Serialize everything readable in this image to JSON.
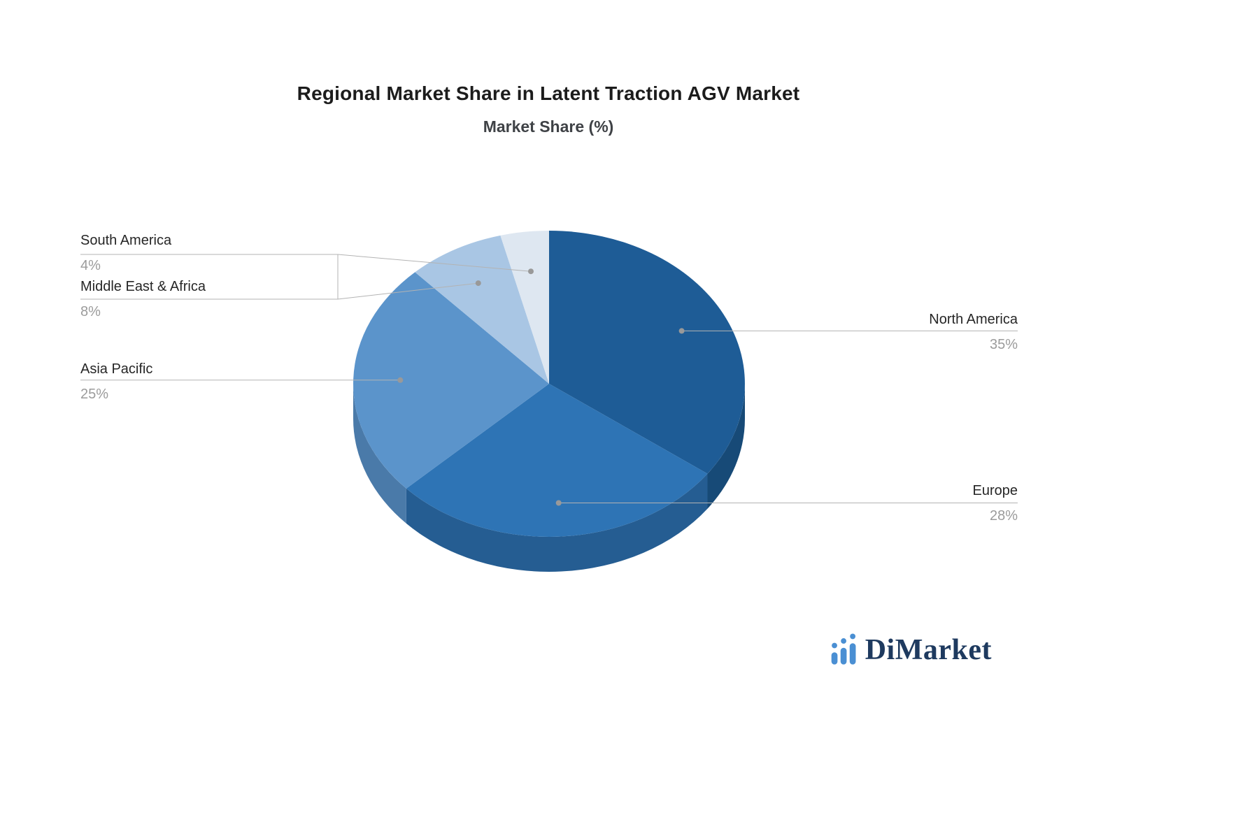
{
  "chart_data": {
    "type": "pie",
    "title": "Regional Market Share in Latent Traction AGV Market",
    "subtitle": "Market Share (%)",
    "unit": "%",
    "total": 100,
    "direction": "clockwise",
    "start_angle_deg": 0,
    "label_position": "outside",
    "legend": "none",
    "style": "3d-pie",
    "slices": [
      {
        "label": "North America",
        "value": 35,
        "pct_label": "35%",
        "color": "#1E5C96",
        "side_color": "#174A77"
      },
      {
        "label": "Europe",
        "value": 28,
        "pct_label": "28%",
        "color": "#2E74B5",
        "side_color": "#255D92"
      },
      {
        "label": "Asia Pacific",
        "value": 25,
        "pct_label": "25%",
        "color": "#5B94CB",
        "side_color": "#4A7AA9"
      },
      {
        "label": "Middle East & Africa",
        "value": 8,
        "pct_label": "8%",
        "color": "#A9C6E4",
        "side_color": "#8DA9C4"
      },
      {
        "label": "South America",
        "value": 4,
        "pct_label": "4%",
        "color": "#DEE7F1",
        "side_color": "#BCC9D6"
      }
    ],
    "line_color": "#b3b3b3",
    "dot_color": "#999999"
  },
  "brand": {
    "name": "DiMarket"
  }
}
